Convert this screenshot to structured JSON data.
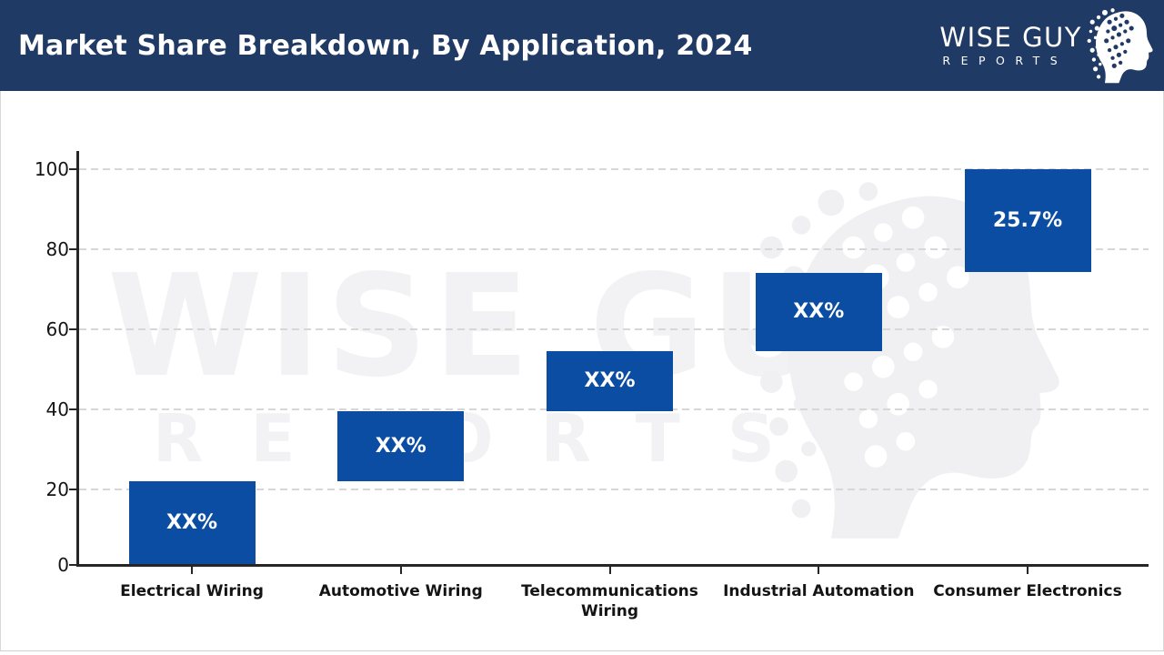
{
  "colors": {
    "header_bg": "#203a66",
    "bar": "#0b4da2",
    "bar_label": "#ffffff",
    "grid": "#d7d7d7",
    "axis": "#262626",
    "text": "#141414",
    "watermark": "#f2f2f4"
  },
  "header": {
    "title": "Market Share Breakdown, By Application, 2024",
    "logo_line1": "WISE GUY",
    "logo_line2": "REPORTS",
    "logo_icon": "dotted-head-profile-icon"
  },
  "watermark": {
    "line1": "WISE GUY",
    "line2": "REPORTS",
    "icon": "dotted-head-profile-watermark"
  },
  "chart_data": {
    "type": "bar",
    "subtype": "stepped-floating-bars",
    "title": "Market Share Breakdown, By Application, 2024",
    "categories": [
      "Electrical Wiring",
      "Automotive Wiring",
      "Telecommunications Wiring",
      "Industrial Automation",
      "Consumer Electronics"
    ],
    "segments": [
      {
        "category": "Electrical Wiring",
        "start": 0,
        "end": 22,
        "label": "XX%"
      },
      {
        "category": "Automotive Wiring",
        "start": 22,
        "end": 39.5,
        "label": "XX%"
      },
      {
        "category": "Telecommunications Wiring",
        "start": 39.5,
        "end": 54.5,
        "label": "XX%"
      },
      {
        "category": "Industrial Automation",
        "start": 54.5,
        "end": 74,
        "label": "XX%"
      },
      {
        "category": "Consumer Electronics",
        "start": 74.3,
        "end": 100,
        "label": "25.7%"
      }
    ],
    "xlabel": "",
    "ylabel": "",
    "ylim": [
      0,
      100
    ],
    "yticks": [
      0,
      20,
      40,
      60,
      80,
      100
    ],
    "grid": "horizontal-dashed",
    "legend": "none"
  }
}
